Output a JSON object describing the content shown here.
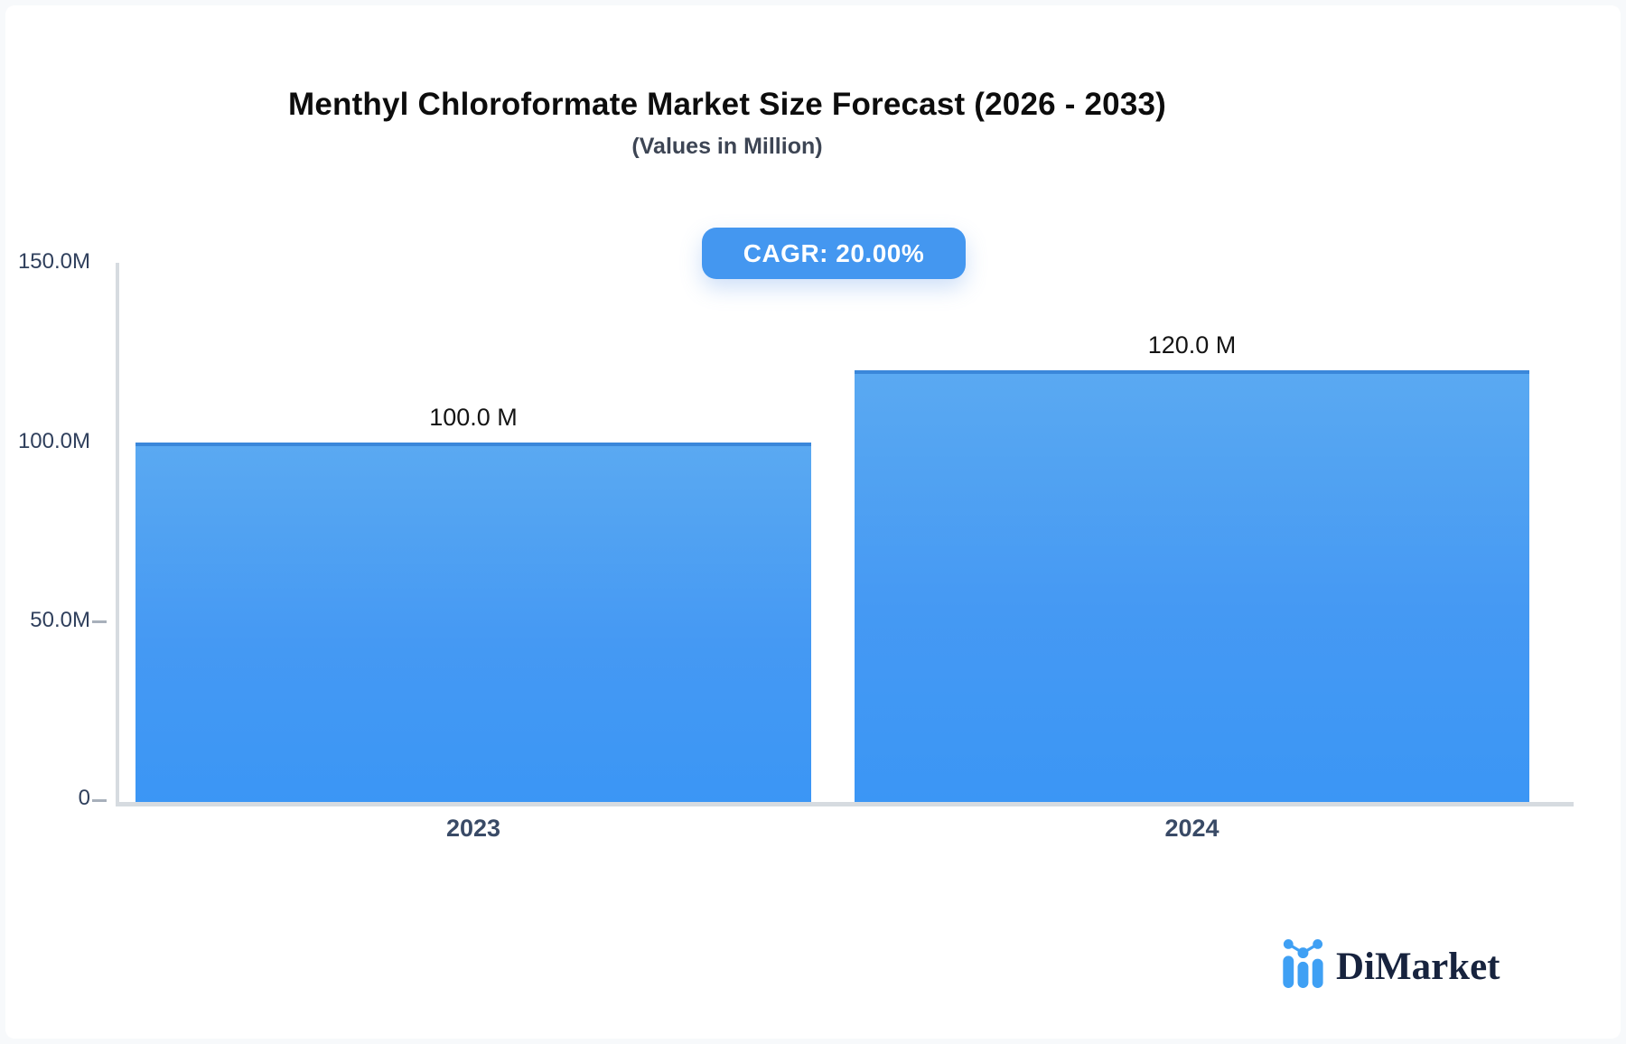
{
  "header": {
    "title": "Menthyl Chloroformate Market Size Forecast (2026 - 2033)",
    "subtitle": "(Values in Million)"
  },
  "badge": {
    "label": "CAGR: 20.00%",
    "bg_color": "#4497f0",
    "text_color": "#ffffff"
  },
  "chart_data": {
    "type": "bar",
    "title": "Menthyl Chloroformate Market Size Forecast (2026 - 2033)",
    "subtitle": "(Values in Million)",
    "unit": "Million",
    "categories": [
      "2023",
      "2024"
    ],
    "values": [
      100.0,
      120.0
    ],
    "bar_labels": [
      "100.0 M",
      "120.0 M"
    ],
    "ylim": [
      0,
      150
    ],
    "y_ticks": [
      {
        "value": 150,
        "label": "150.0M"
      },
      {
        "value": 100,
        "label": "100.0M"
      },
      {
        "value": 50,
        "label": "50.0M"
      },
      {
        "value": 0,
        "label": "0"
      }
    ],
    "cagr": "CAGR: 20.00%",
    "bar_color_top": "#5aa9f2",
    "bar_color_bottom": "#3b96f5",
    "bar_border_top": "#3a87da",
    "axis_color": "#d6dbe0",
    "grid": "off",
    "legend": "none"
  },
  "footer": {
    "brand": "DiMarket",
    "logo_icon": "bar-chart-logo-icon",
    "brand_color": "#17233e",
    "icon_color": "#3fa0f4"
  }
}
